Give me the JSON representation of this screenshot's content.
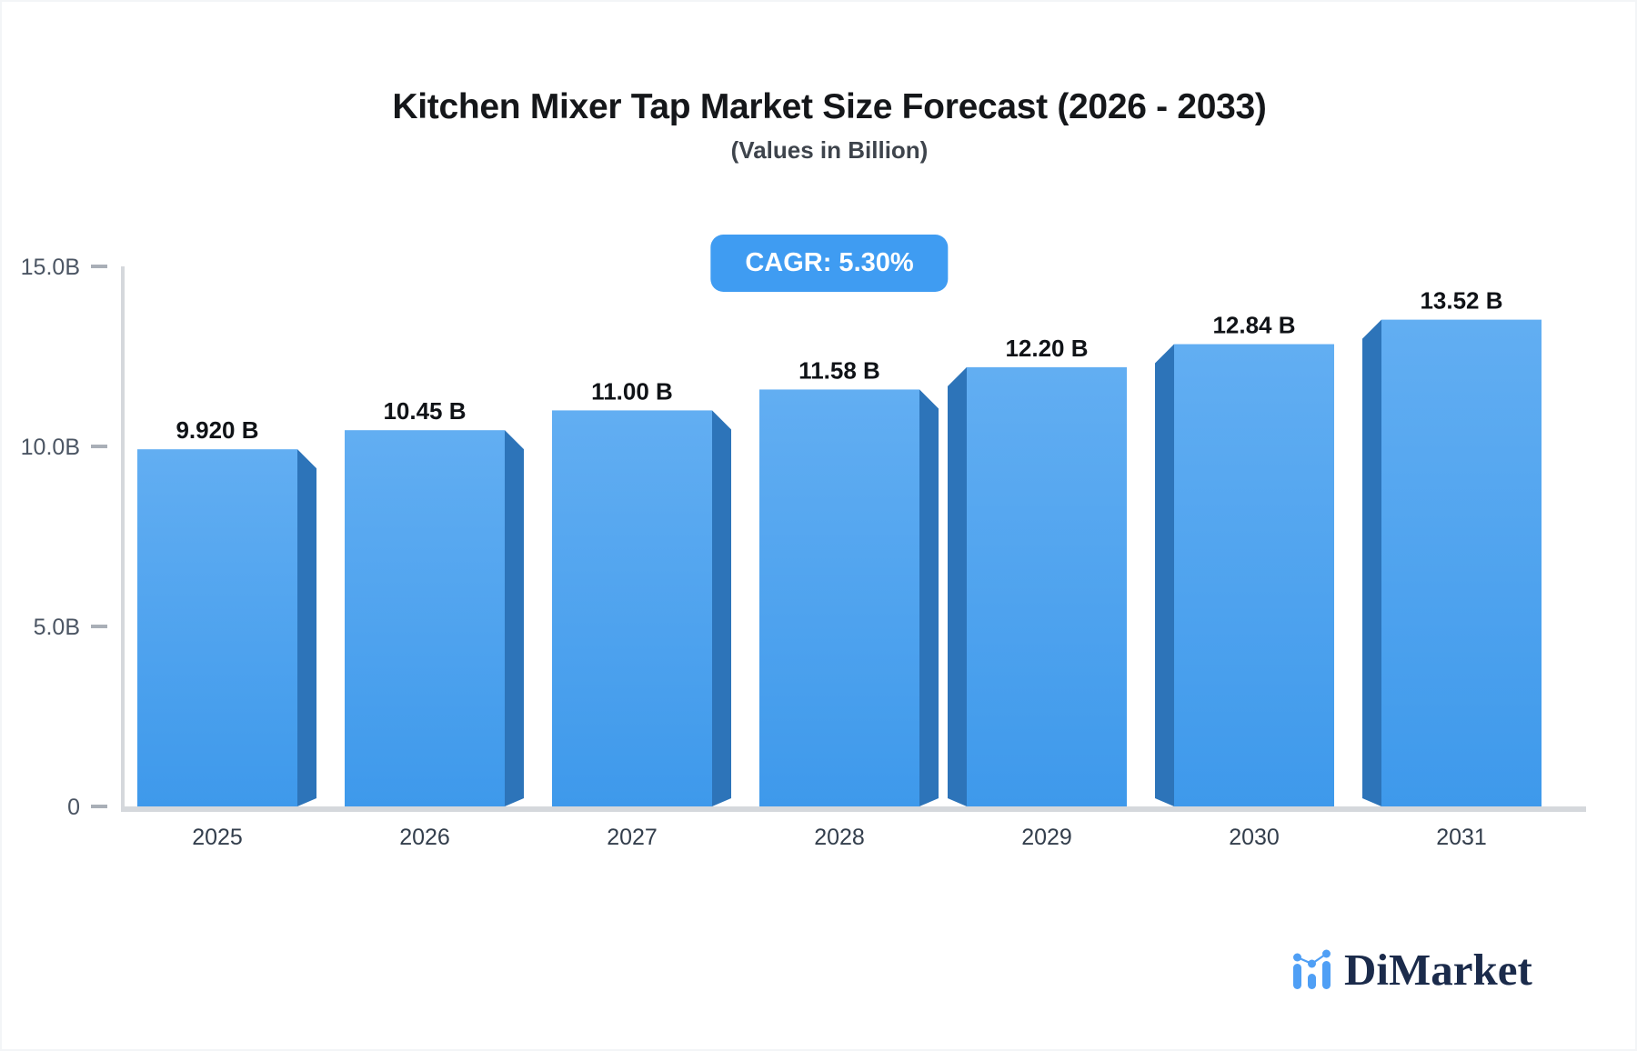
{
  "chart_data": {
    "type": "bar",
    "title": "Kitchen Mixer Tap Market Size Forecast (2026 - 2033)",
    "subtitle": "(Values in Billion)",
    "annotation": "CAGR: 5.30%",
    "categories": [
      "2025",
      "2026",
      "2027",
      "2028",
      "2029",
      "2030",
      "2031"
    ],
    "values": [
      9.92,
      10.45,
      11.0,
      11.58,
      12.2,
      12.84,
      13.52
    ],
    "value_labels": [
      "9.920 B",
      "10.45 B",
      "11.00 B",
      "11.58 B",
      "12.20 B",
      "12.84 B",
      "13.52 B"
    ],
    "ylabel": "",
    "xlabel": "",
    "ylim": [
      0,
      15
    ],
    "yticks": [
      {
        "v": 15,
        "label": "15.0B"
      },
      {
        "v": 10,
        "label": "10.0B"
      },
      {
        "v": 5,
        "label": "5.0B"
      },
      {
        "v": 0,
        "label": "0"
      }
    ],
    "grid": "off",
    "legend": "none",
    "colors": {
      "bar_face_top": "#62AEF2",
      "bar_face_bottom": "#3E99EB",
      "bar_side": "#2D74B9",
      "axis_line": "#D5D8DC",
      "tick_dash": "#A9AFB7",
      "ytick_text": "#4B5563",
      "xtick_text": "#333E4C",
      "value_text": "#101317",
      "badge_bg": "#3F9CF2",
      "badge_text": "#FFFFFF"
    }
  },
  "logo": {
    "name": "DiMarket",
    "icon": "mini-bar-chart-logo",
    "icon_color": "#4F9FF5",
    "text_color": "#1B2B4B"
  }
}
